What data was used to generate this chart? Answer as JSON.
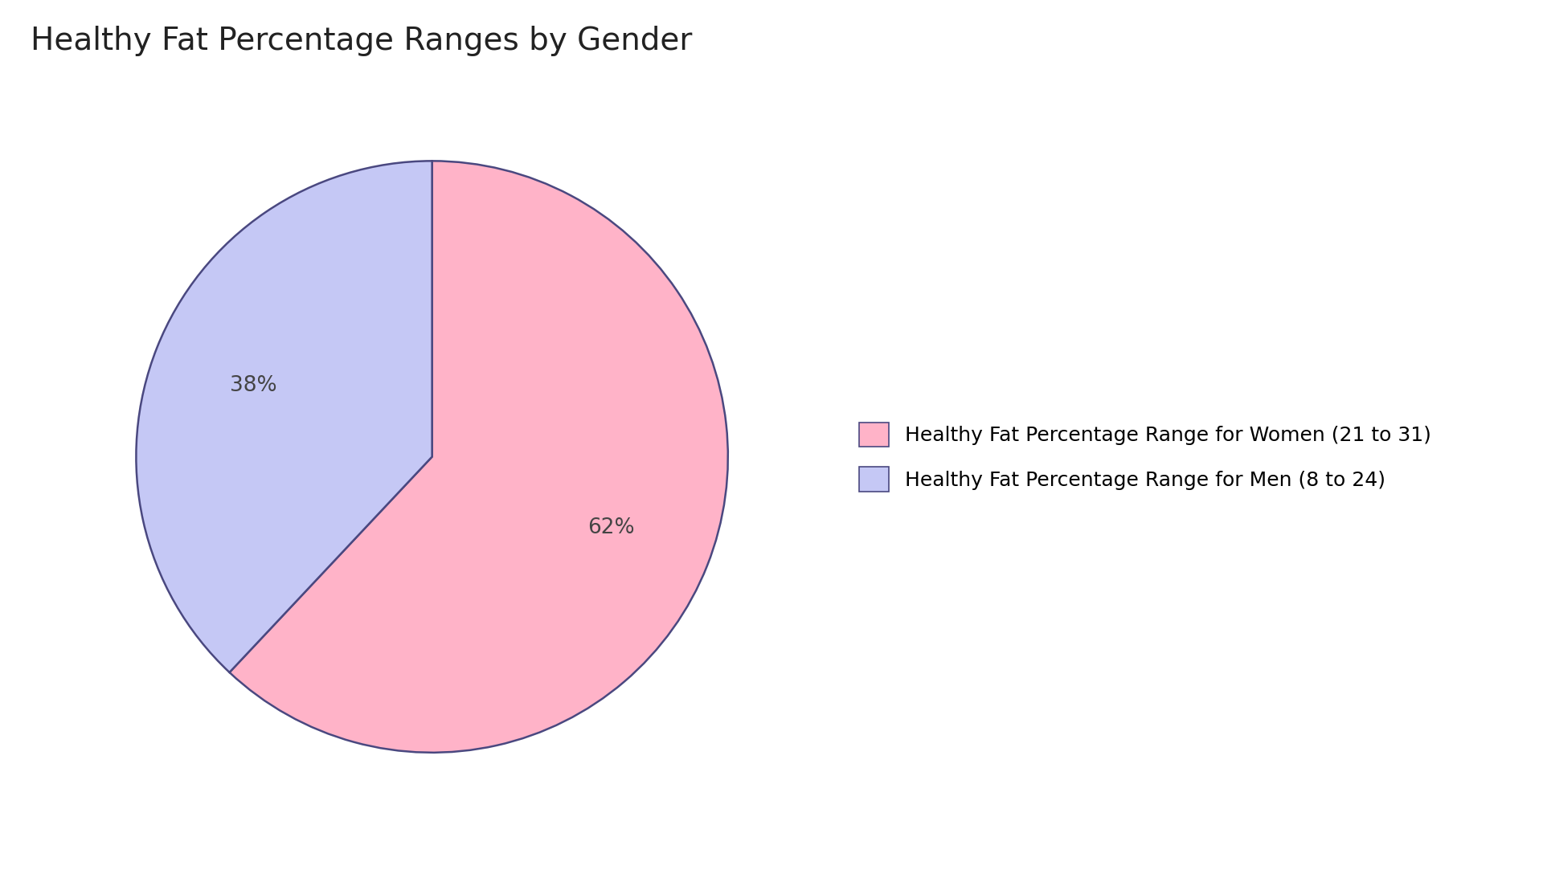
{
  "title": "Healthy Fat Percentage Ranges by Gender",
  "values": [
    62,
    38
  ],
  "labels": [
    "Healthy Fat Percentage Range for Women (21 to 31)",
    "Healthy Fat Percentage Range for Men (8 to 24)"
  ],
  "colors": [
    "#FFB3C8",
    "#C5C8F5"
  ],
  "edge_color": "#4A4880",
  "title_fontsize": 28,
  "pct_fontsize": 19,
  "legend_fontsize": 18,
  "background_color": "#FFFFFF",
  "startangle": 90
}
